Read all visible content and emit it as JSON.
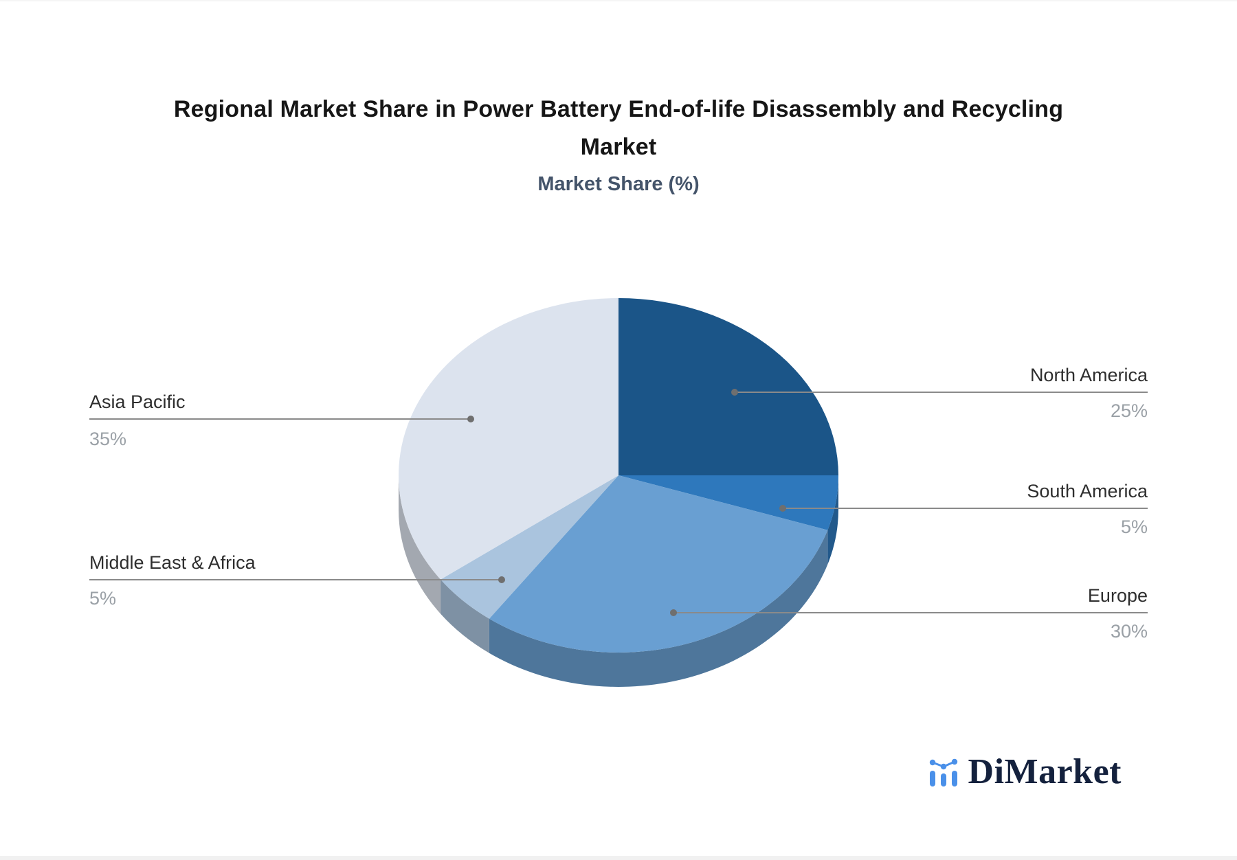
{
  "header": {
    "title": "Regional Market Share in Power Battery End-of-life Disassembly and Recycling Market",
    "title_line1": "Regional Market Share in Power Battery End-of-life Disassembly and Recycling",
    "title_line2": "Market",
    "subtitle": "Market Share (%)"
  },
  "brand": {
    "name": "DiMarket",
    "icon": "bar-line-chart-icon",
    "icon_color": "#4a90e9",
    "text_color": "#14213d"
  },
  "chart_data": {
    "type": "pie",
    "style": "3d",
    "title": "Regional Market Share in Power Battery End-of-life Disassembly and Recycling Market",
    "subtitle": "Market Share (%)",
    "unit": "%",
    "direction": "clockwise",
    "start_angle_deg": 0,
    "legend": "none",
    "labels": "leader-lines",
    "slices": [
      {
        "label": "North America",
        "value": 25,
        "value_label": "25%",
        "color": "#1b5588",
        "callout_side": "right"
      },
      {
        "label": "South America",
        "value": 5,
        "value_label": "5%",
        "color": "#2e78bc",
        "callout_side": "right"
      },
      {
        "label": "Europe",
        "value": 30,
        "value_label": "30%",
        "color": "#699fd2",
        "callout_side": "right"
      },
      {
        "label": "Middle East & Africa",
        "value": 5,
        "value_label": "5%",
        "color": "#aac4de",
        "callout_side": "left"
      },
      {
        "label": "Asia Pacific",
        "value": 35,
        "value_label": "35%",
        "color": "#dce3ee",
        "callout_side": "left"
      }
    ],
    "leader_line_color": "#8a8a8a",
    "leader_dot_color": "#6f6f6f"
  }
}
